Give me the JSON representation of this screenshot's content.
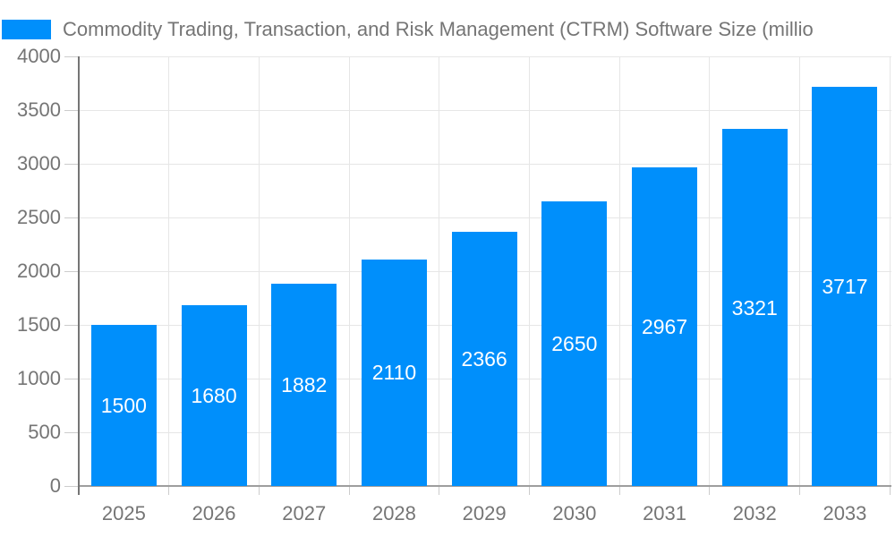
{
  "legend": {
    "series_label": "Commodity Trading, Transaction, and Risk Management (CTRM) Software Size (millio"
  },
  "chart_data": {
    "type": "bar",
    "title": "Commodity Trading, Transaction, and Risk Management (CTRM) Software Size (millio",
    "categories": [
      "2025",
      "2026",
      "2027",
      "2028",
      "2029",
      "2030",
      "2031",
      "2032",
      "2033"
    ],
    "values": [
      1500,
      1680,
      1882,
      2110,
      2366,
      2650,
      2967,
      3321,
      3717
    ],
    "value_labels": [
      "1500",
      "1680",
      "1882",
      "2110",
      "2366",
      "2650",
      "2967",
      "3321",
      "3717"
    ],
    "xlabel": "",
    "ylabel": "",
    "ylim": [
      0,
      4000
    ],
    "ytick_step": 500,
    "ytick_labels": [
      "0",
      "500",
      "1000",
      "1500",
      "2000",
      "2500",
      "3000",
      "3500",
      "4000"
    ],
    "grid": true,
    "legend_position": "top",
    "colors": {
      "bar": "#008FFB",
      "value_label": "#ffffff",
      "axis_text": "#757575",
      "title_text": "#757575",
      "gridline": "#e6e6e6",
      "baseline": "#9e9e9e",
      "axis_line": "#757575",
      "tick": "#cccccc",
      "background": "#ffffff"
    }
  }
}
